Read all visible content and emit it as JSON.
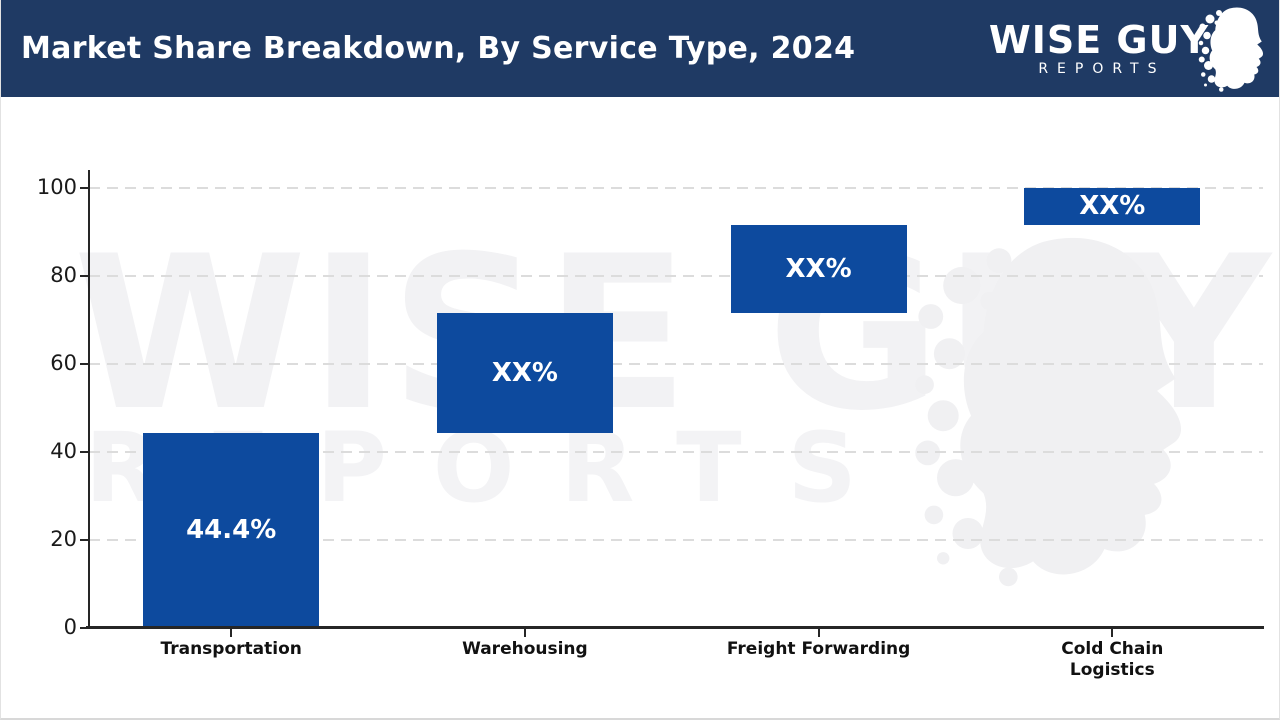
{
  "header": {
    "title": "Market Share Breakdown, By Service Type, 2024",
    "logo": {
      "line1": "WISE GUY",
      "line2": "REPORTS"
    }
  },
  "watermark": {
    "line1": "WISE GUY",
    "line2": "REPORTS"
  },
  "colors": {
    "header_bg": "#1f3a64",
    "bar": "#0d4a9e",
    "axis": "#262626",
    "gridline": "#dcdcdc",
    "tick_text": "#1a1a1a",
    "value_label_text": "#ffffff",
    "watermark": "#f2f2f4"
  },
  "chart_data": {
    "type": "bar",
    "subtype": "waterfall",
    "title": "Market Share Breakdown, By Service Type, 2024",
    "xlabel": "",
    "ylabel": "",
    "categories": [
      "Transportation",
      "Warehousing",
      "Freight Forwarding",
      "Cold Chain\nLogistics"
    ],
    "segments": [
      {
        "category": "Transportation",
        "start": 0,
        "end": 44.4,
        "label": "44.4%"
      },
      {
        "category": "Warehousing",
        "start": 44.4,
        "end": 71.6,
        "label": "XX%"
      },
      {
        "category": "Freight Forwarding",
        "start": 71.6,
        "end": 91.6,
        "label": "XX%"
      },
      {
        "category": "Cold Chain Logistics",
        "start": 91.6,
        "end": 100,
        "label": "XX%"
      }
    ],
    "yticks": [
      0,
      20,
      40,
      60,
      80,
      100
    ],
    "ylim": [
      0,
      100
    ],
    "grid": "horizontal dashed",
    "legend": "none",
    "bar_color": "#0d4a9e"
  }
}
